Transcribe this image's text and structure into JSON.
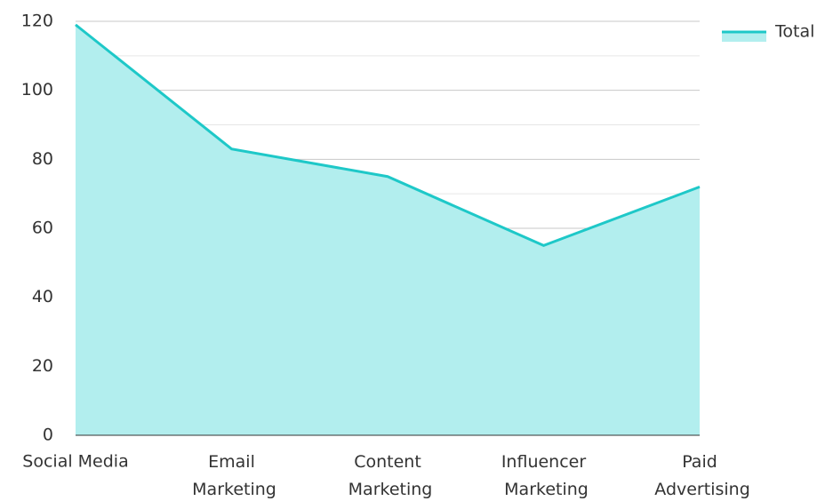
{
  "chart_data": {
    "type": "area",
    "categories": [
      "Social Media",
      "Email Marketing",
      "Content Marketing",
      "Influencer Marketing",
      "Paid Advertising"
    ],
    "series": [
      {
        "name": "Total",
        "color": "#1ec8c8",
        "fill": "#b2eeee",
        "values": [
          119,
          83,
          75,
          55,
          72
        ]
      }
    ],
    "ylim": [
      0,
      120
    ],
    "yticks": [
      0,
      20,
      40,
      60,
      80,
      100,
      120
    ],
    "minor_yticks": [
      10,
      30,
      50,
      70,
      90,
      110
    ],
    "grid": true,
    "legend": "top-right"
  }
}
